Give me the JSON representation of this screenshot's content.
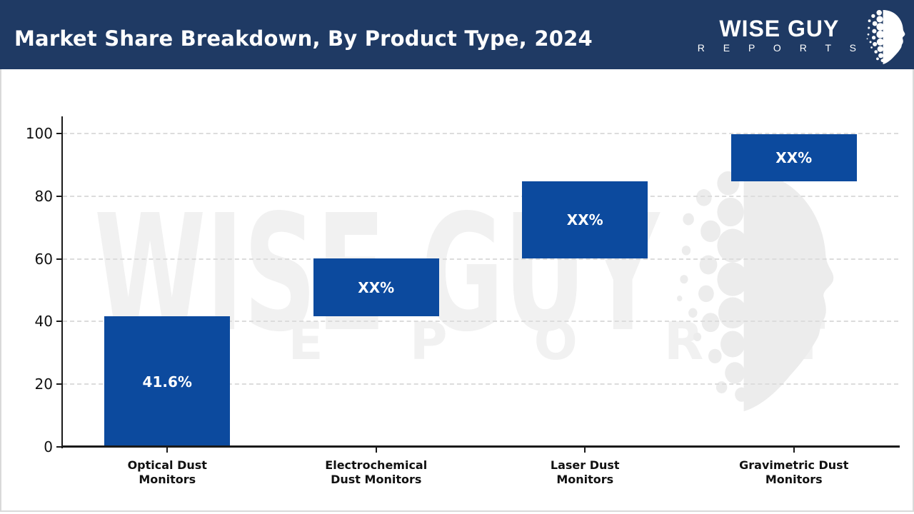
{
  "header": {
    "title": "Market Share Breakdown, By Product Type, 2024",
    "logo": {
      "brand_top": "WISE GUY",
      "brand_bottom": "R E P O R T S"
    }
  },
  "watermark": {
    "line1": "WISE GUY",
    "line2": "R E P O R T S"
  },
  "colors": {
    "header_bg": "#1f3a64",
    "bar": "#0c4a9e",
    "grid": "#dcdcdc",
    "axis": "#1a1a1a",
    "bar_label": "#ffffff",
    "watermark": "#f1f1f1",
    "frame_border": "#d9d9d9"
  },
  "chart_data": {
    "type": "bar",
    "subtype": "floating-segment-waterfall",
    "title": "Market Share Breakdown, By Product Type, 2024",
    "unit": "%",
    "categories": [
      "Optical Dust\nMonitors",
      "Electrochemical\nDust Monitors",
      "Laser Dust\nMonitors",
      "Gravimetric Dust\nMonitors"
    ],
    "bars": [
      {
        "category": "Optical Dust Monitors",
        "start": 0,
        "end": 41.6,
        "label": "41.6%"
      },
      {
        "category": "Electrochemical Dust Monitors",
        "start": 41.6,
        "end": 60.2,
        "label": "XX%"
      },
      {
        "category": "Laser Dust Monitors",
        "start": 60.2,
        "end": 84.8,
        "label": "XX%"
      },
      {
        "category": "Gravimetric Dust Monitors",
        "start": 84.8,
        "end": 99.8,
        "label": "XX%"
      }
    ],
    "yticks": [
      0,
      20,
      40,
      60,
      80,
      100
    ],
    "ylim": [
      0,
      105
    ],
    "xlabel": "",
    "ylabel": "",
    "grid": "horizontal dashed",
    "legend": "none",
    "bar_color": "#0c4a9e",
    "bar_label_color": "#ffffff"
  }
}
